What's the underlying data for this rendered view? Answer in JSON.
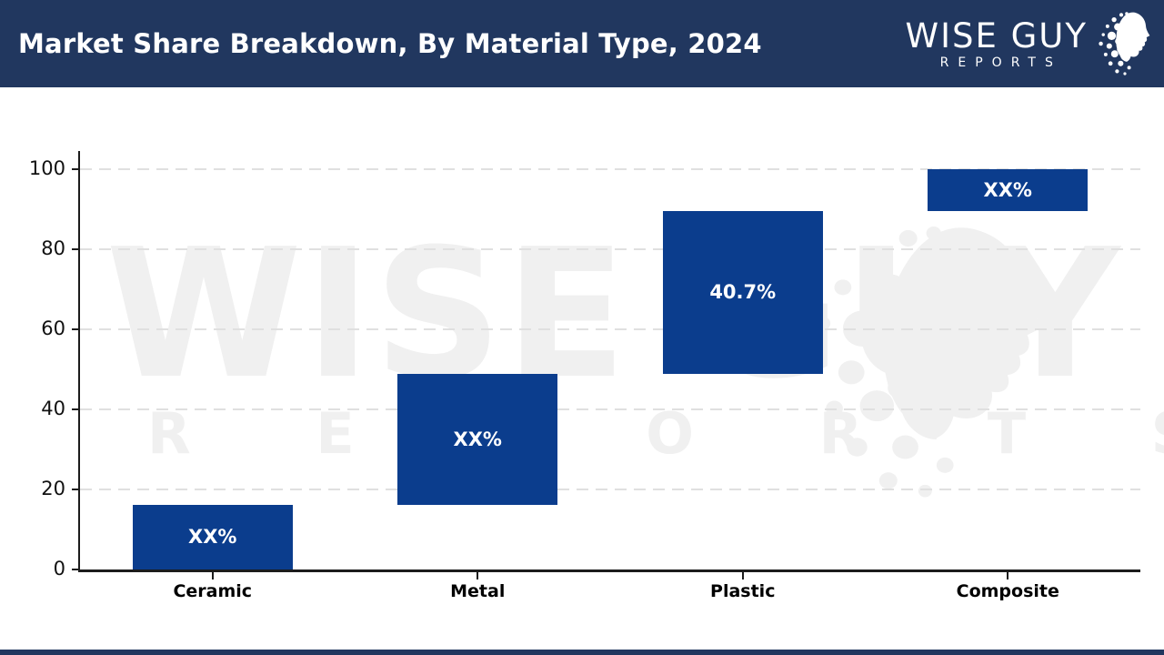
{
  "header": {
    "title": "Market Share Breakdown, By Material Type, 2024",
    "logo": {
      "wordmark": "WISE GUY",
      "subtitle": "REPORTS"
    }
  },
  "watermark": {
    "wordmark": "WISE GUY",
    "subtitle": "R E P O R T S"
  },
  "chart_data": {
    "type": "bar",
    "subtype": "waterfall",
    "title": "Market Share Breakdown, By Material Type, 2024",
    "categories": [
      "Ceramic",
      "Metal",
      "Plastic",
      "Composite"
    ],
    "segments": [
      {
        "category": "Ceramic",
        "start": 0,
        "end": 16.2,
        "label": "XX%"
      },
      {
        "category": "Metal",
        "start": 16.2,
        "end": 48.8,
        "label": "XX%"
      },
      {
        "category": "Plastic",
        "start": 48.8,
        "end": 89.5,
        "label": "40.7%",
        "value": 40.7
      },
      {
        "category": "Composite",
        "start": 89.5,
        "end": 100,
        "label": "XX%"
      }
    ],
    "ylim": [
      0,
      100
    ],
    "yticks": [
      0,
      20,
      40,
      60,
      80,
      100
    ],
    "xlabel": "",
    "ylabel": "",
    "grid": true,
    "grid_style": "dashed",
    "legend": "none"
  },
  "colors": {
    "header_bg": "#21375f",
    "footer_bg": "#21375f",
    "bar": "#0b3d8d",
    "bar_label": "#ffffff",
    "grid": "#e0e0e0",
    "watermark": "#f0f0f0",
    "axis": "#1c1c1c",
    "tick_label": "#111111"
  }
}
